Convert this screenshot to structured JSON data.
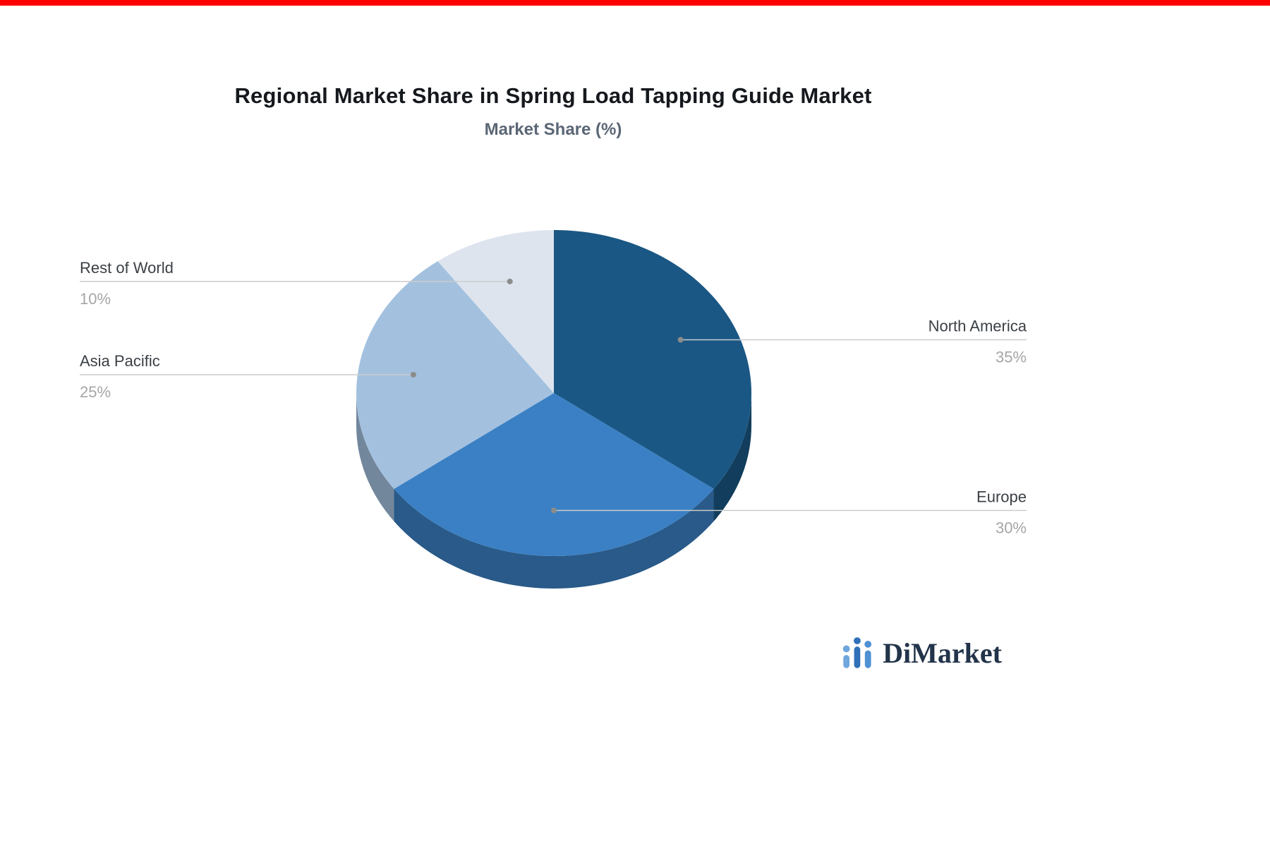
{
  "page": {
    "background": "#ffffff",
    "top_border_color": "#fe0000"
  },
  "chart_data": {
    "type": "pie",
    "style": "3d",
    "title": "Regional Market Share in Spring Load Tapping Guide Market",
    "subtitle": "Market Share (%)",
    "start_angle_deg": 0,
    "direction": "clockwise",
    "legend": "none",
    "categories": [
      "North America",
      "Europe",
      "Asia Pacific",
      "Rest of World"
    ],
    "values": [
      35,
      30,
      25,
      10
    ],
    "slices": [
      {
        "label": "North America",
        "value": 35,
        "display_value": "35%",
        "color": "#1a5784"
      },
      {
        "label": "Europe",
        "value": 30,
        "display_value": "30%",
        "color": "#3b80c4"
      },
      {
        "label": "Asia Pacific",
        "value": 25,
        "display_value": "25%",
        "color": "#a3c1df"
      },
      {
        "label": "Rest of World",
        "value": 10,
        "display_value": "10%",
        "color": "#dde4ee"
      }
    ],
    "label_style": {
      "name_color": "#3a3f45",
      "value_color": "#a6a6a6",
      "line_color": "#cccccc",
      "dot_color": "#8c8c8c"
    }
  },
  "branding": {
    "logo_text": "DiMarket",
    "logo_icon": "bar-chart-icon",
    "text_color": "#22344a",
    "icon_colors": [
      "#6fa6dc",
      "#3070b8",
      "#4f91d2"
    ]
  }
}
